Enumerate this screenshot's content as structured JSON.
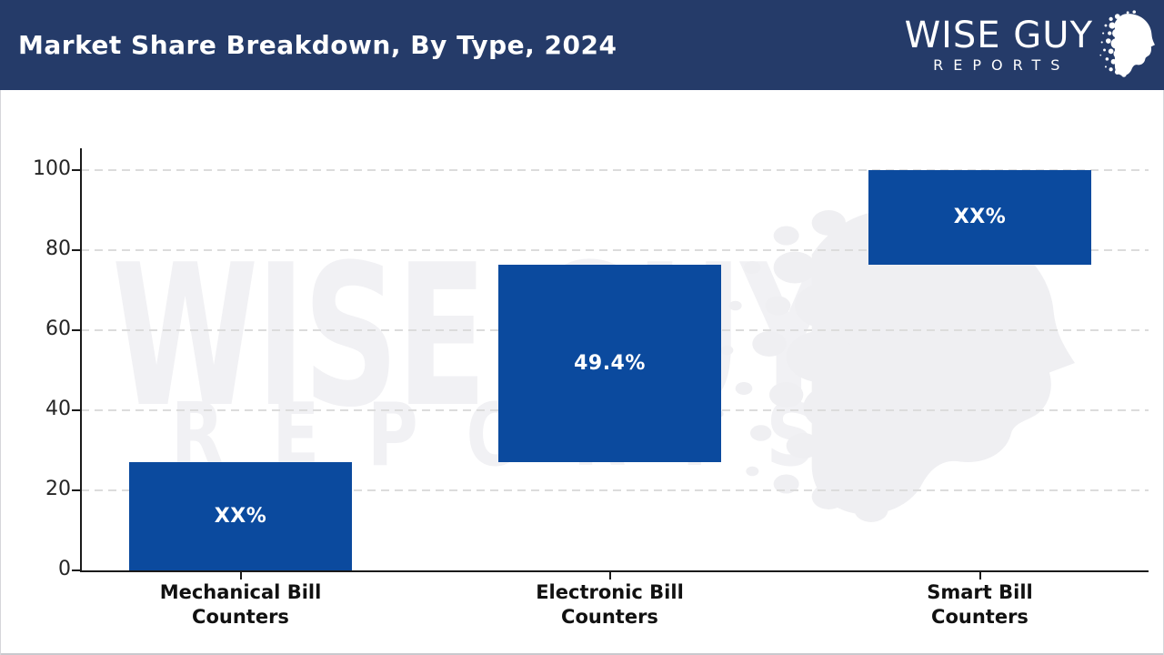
{
  "header": {
    "title": "Market Share Breakdown, By Type, 2024",
    "logo": {
      "brand_line1": "WISE GUY",
      "brand_line2": "REPORTS"
    }
  },
  "watermark": {
    "line1": "WISE GUY",
    "line2": "REPORTS"
  },
  "chart_data": {
    "type": "bar",
    "variant": "floating-stacked-percentage-bars",
    "title": "Market Share Breakdown, By Type, 2024",
    "categories": [
      "Mechanical Bill Counters",
      "Electronic Bill Counters",
      "Smart Bill Counters"
    ],
    "category_lines": [
      [
        "Mechanical Bill",
        "Counters"
      ],
      [
        "Electronic Bill",
        "Counters"
      ],
      [
        "Smart Bill",
        "Counters"
      ]
    ],
    "bars": [
      {
        "category": "Mechanical Bill Counters",
        "start": 0,
        "end": 27,
        "height": 27,
        "label": "XX%"
      },
      {
        "category": "Electronic Bill Counters",
        "start": 27,
        "end": 76.4,
        "height": 49.4,
        "label": "49.4%"
      },
      {
        "category": "Smart Bill Counters",
        "start": 76.4,
        "end": 100,
        "height": 23.6,
        "label": "XX%"
      }
    ],
    "y_ticks": [
      0,
      20,
      40,
      60,
      80,
      100
    ],
    "ylim": [
      0,
      105
    ],
    "xlabel": "",
    "ylabel": "",
    "grid": "horizontal-dashed",
    "legend": "none"
  },
  "colors": {
    "header_bg": "#253B69",
    "bar": "#0B4A9E",
    "bar_label": "#FFFFFF",
    "grid": "#DCDCDC",
    "axis": "#1A1A1A",
    "watermark": "#F1F1F4"
  }
}
